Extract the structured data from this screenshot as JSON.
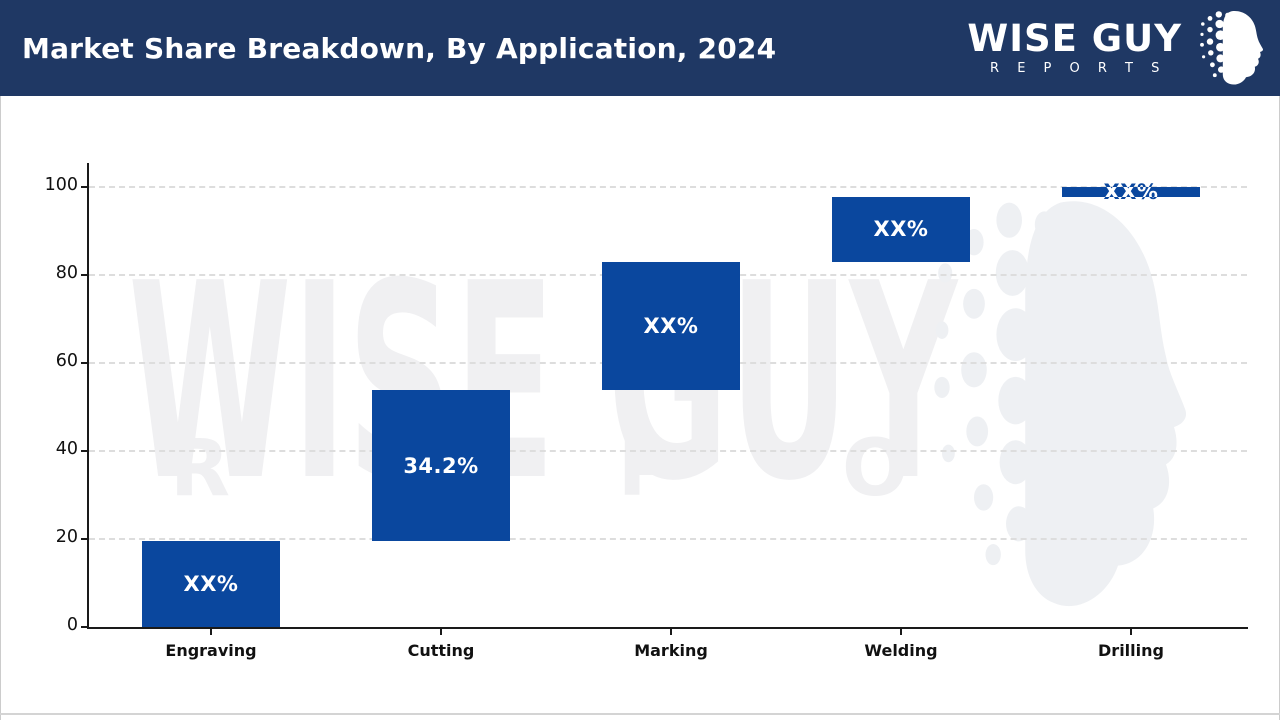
{
  "page": {
    "background": "#ffffff",
    "border_color": "#cccccc"
  },
  "header": {
    "bg_color": "#1f3864",
    "title": "Market Share Breakdown, By Application, 2024",
    "logo": {
      "brand_line1": "WISE GUY",
      "brand_line2": "R E P O R T S",
      "icon": "wiseguy-face-icon"
    }
  },
  "watermark": {
    "line1": "WISE GUY",
    "line2": "R E P O R T S"
  },
  "chart_data": {
    "type": "bar",
    "variant": "waterfall",
    "title": "Market Share Breakdown, By Application, 2024",
    "categories": [
      "Engraving",
      "Cutting",
      "Marking",
      "Welding",
      "Drilling"
    ],
    "segments": [
      {
        "category": "Engraving",
        "start": 0,
        "end": 19.6,
        "value": 19.6,
        "label": "XX%"
      },
      {
        "category": "Cutting",
        "start": 19.6,
        "end": 53.8,
        "value": 34.2,
        "label": "34.2%"
      },
      {
        "category": "Marking",
        "start": 53.8,
        "end": 83.0,
        "value": 29.2,
        "label": "XX%"
      },
      {
        "category": "Welding",
        "start": 83.0,
        "end": 97.7,
        "value": 14.7,
        "label": "XX%"
      },
      {
        "category": "Drilling",
        "start": 97.7,
        "end": 100.0,
        "value": 2.3,
        "label": "XX%"
      }
    ],
    "bar_color": "#0a479e",
    "bar_label_color": "#ffffff",
    "yticks": [
      0,
      20,
      40,
      60,
      80,
      100
    ],
    "ylim": [
      0,
      104
    ],
    "xlabel": "",
    "ylabel": "",
    "grid": "horizontal-dashed",
    "gridline_color": "#dddddd",
    "axis_color": "#1a1a1a",
    "legend": "none"
  }
}
